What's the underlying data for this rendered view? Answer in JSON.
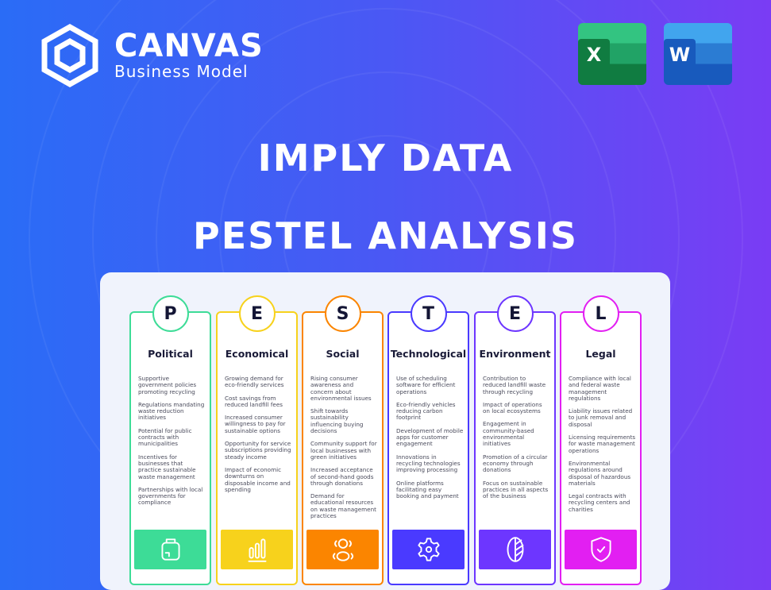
{
  "brand": {
    "name": "CANVAS",
    "tagline": "Business Model"
  },
  "apps": [
    {
      "name": "Excel",
      "letter": "X",
      "icon": "excel-icon"
    },
    {
      "name": "Word",
      "letter": "W",
      "icon": "word-icon"
    }
  ],
  "title_line1": "IMPLY DATA",
  "title_line2": "PESTEL ANALYSIS",
  "columns": [
    {
      "letter": "P",
      "title": "Political",
      "color": "#3ddc97",
      "icon": "briefcase-icon",
      "items": [
        "Supportive government policies promoting recycling",
        "Regulations mandating waste reduction initiatives",
        "Potential for public contracts with municipalities",
        "Incentives for businesses that practice sustainable waste management",
        "Partnerships with local governments for compliance"
      ]
    },
    {
      "letter": "E",
      "title": "Economical",
      "color": "#f7d21c",
      "icon": "bar-chart-icon",
      "items": [
        "Growing demand for eco-friendly services",
        "Cost savings from reduced landfill fees",
        "Increased consumer willingness to pay for sustainable options",
        "Opportunity for service subscriptions providing steady income",
        "Impact of economic downturns on disposable income and spending"
      ]
    },
    {
      "letter": "S",
      "title": "Social",
      "color": "#fb8500",
      "icon": "people-icon",
      "items": [
        "Rising consumer awareness and concern about environmental issues",
        "Shift towards sustainability influencing buying decisions",
        "Community support for local businesses with green initiatives",
        "Increased acceptance of second-hand goods through donations",
        "Demand for educational resources on waste management practices"
      ]
    },
    {
      "letter": "T",
      "title": "Technological",
      "color": "#4a3aff",
      "icon": "gear-icon",
      "items": [
        "Use of scheduling software for efficient operations",
        "Eco-friendly vehicles reducing carbon footprint",
        "Development of mobile apps for customer engagement",
        "Innovations in recycling technologies improving processing",
        "Online platforms facilitating easy booking and payment"
      ]
    },
    {
      "letter": "E",
      "title": "Environment",
      "color": "#6d36ff",
      "icon": "leaf-icon",
      "items": [
        "Contribution to reduced landfill waste through recycling",
        "Impact of operations on local ecosystems",
        "Engagement in community-based environmental initiatives",
        "Promotion of a circular economy through donations",
        "Focus on sustainable practices in all aspects of the business"
      ]
    },
    {
      "letter": "L",
      "title": "Legal",
      "color": "#e21ff2",
      "icon": "shield-check-icon",
      "items": [
        "Compliance with local and federal waste management regulations",
        "Liability issues related to junk removal and disposal",
        "Licensing requirements for waste management operations",
        "Environmental regulations around disposal of hazardous materials",
        "Legal contracts with recycling centers and charities"
      ]
    }
  ]
}
